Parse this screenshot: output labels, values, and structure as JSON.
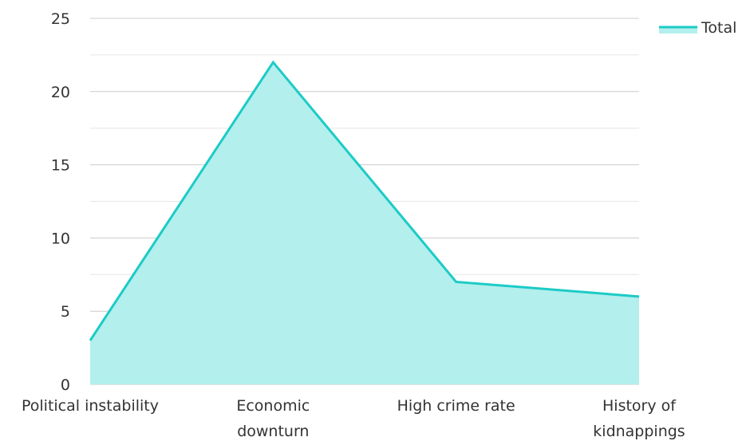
{
  "chart_data": {
    "type": "area",
    "title": "",
    "xlabel": "",
    "ylabel": "",
    "categories": [
      [
        "Political instability"
      ],
      [
        "Economic",
        "downturn"
      ],
      [
        "High crime rate"
      ],
      [
        "History of",
        "kidnappings"
      ]
    ],
    "series": [
      {
        "name": "Total",
        "values": [
          3,
          22,
          7,
          6
        ],
        "line_color": "#1ccbc7",
        "fill_color": "#b3efec"
      }
    ],
    "ylim": [
      0,
      25
    ],
    "yticks": [
      0,
      5,
      10,
      15,
      20,
      25
    ],
    "ytick_labels": [
      "0",
      "5",
      "10",
      "15",
      "20",
      "25"
    ],
    "minor_gridlines": true,
    "grid": true,
    "legend": {
      "position": "top-right"
    },
    "colors": {
      "major_grid": "#cccccc",
      "minor_grid": "#e6e6e6",
      "text": "#333333"
    }
  }
}
